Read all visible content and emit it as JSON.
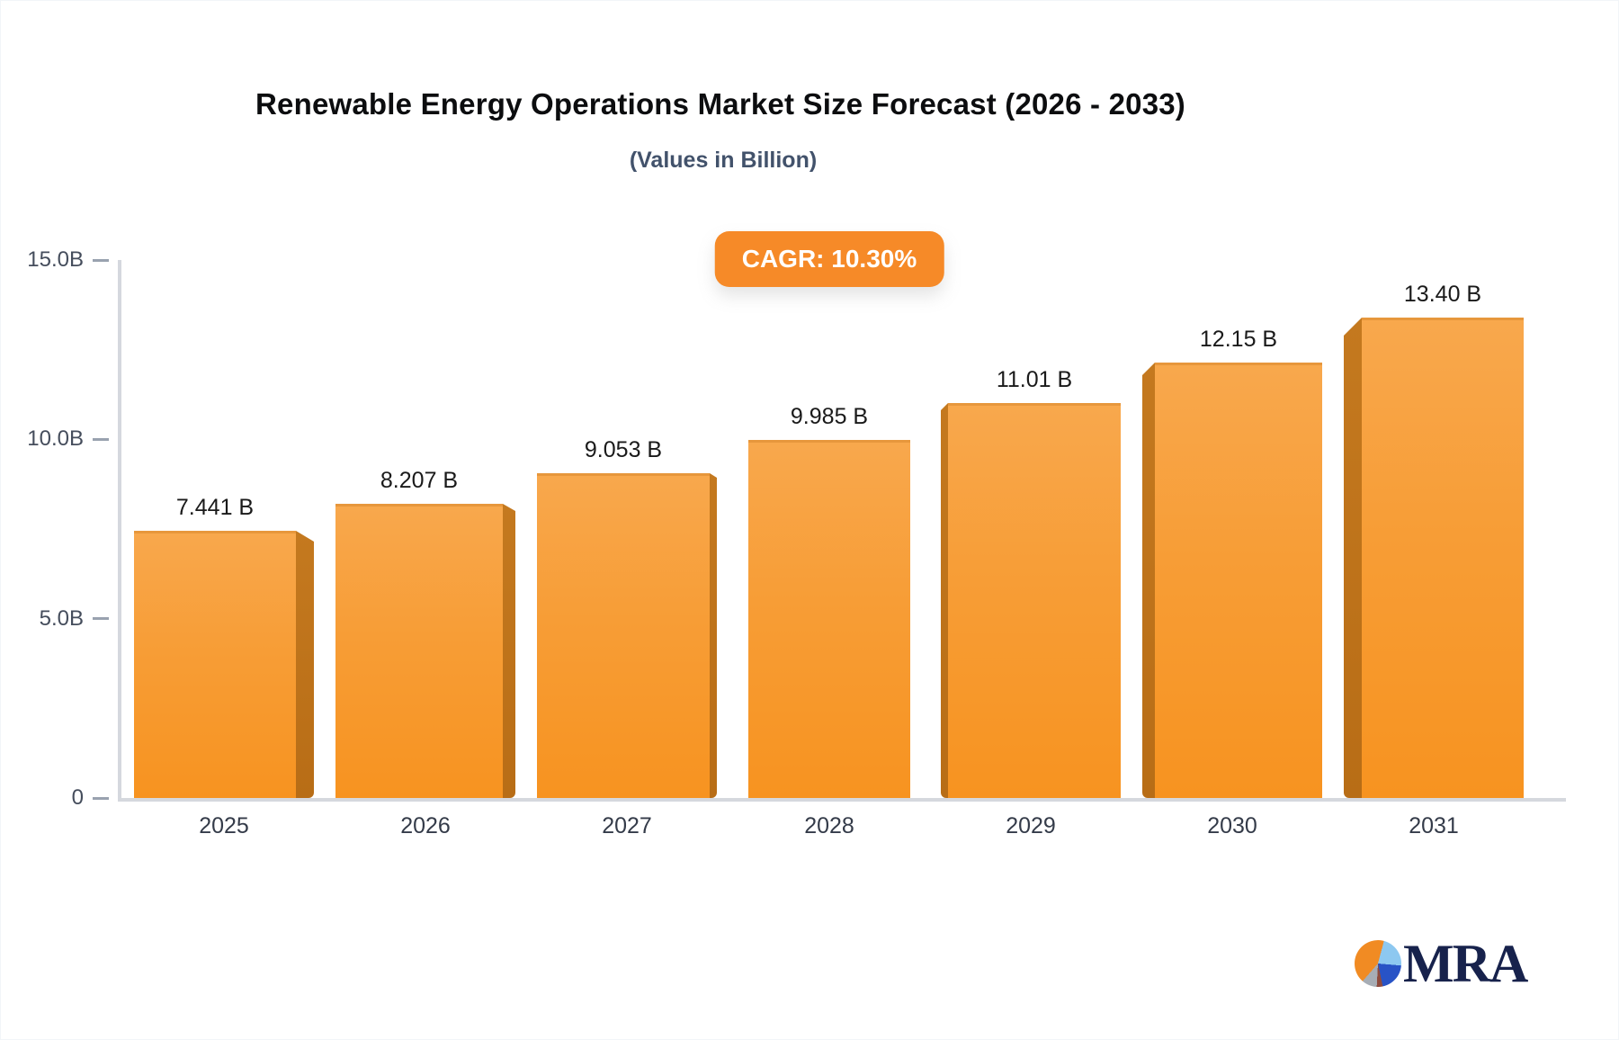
{
  "chart_data": {
    "type": "bar",
    "title": "Renewable Energy Operations Market Size Forecast (2026 - 2033)",
    "subtitle": "(Values in Billion)",
    "cagr_label": "CAGR: 10.30%",
    "categories": [
      "2025",
      "2026",
      "2027",
      "2028",
      "2029",
      "2030",
      "2031"
    ],
    "values": [
      7.441,
      8.207,
      9.053,
      9.985,
      11.01,
      12.15,
      13.4
    ],
    "bar_labels": [
      "7.441 B",
      "8.207 B",
      "9.053 B",
      "9.985 B",
      "11.01 B",
      "12.15 B",
      "13.40 B"
    ],
    "yticks": [
      {
        "value": 15,
        "label": "15.0B"
      },
      {
        "value": 10,
        "label": "10.0B"
      },
      {
        "value": 5,
        "label": "5.0B"
      },
      {
        "value": 0,
        "label": "0"
      }
    ],
    "ylim": [
      0,
      15
    ],
    "xlabel": "",
    "ylabel": "",
    "legend": "none",
    "grid": "off",
    "colors": {
      "bar_face_top": "#f8a84d",
      "bar_face_bottom": "#f79320",
      "bar_side": "#ba6f1c",
      "badge_background": "#f68a28",
      "badge_text": "#ffffff",
      "axis": "#d5d8de",
      "tick_text": "#454d5c"
    }
  },
  "logo": {
    "text": "MRA"
  }
}
